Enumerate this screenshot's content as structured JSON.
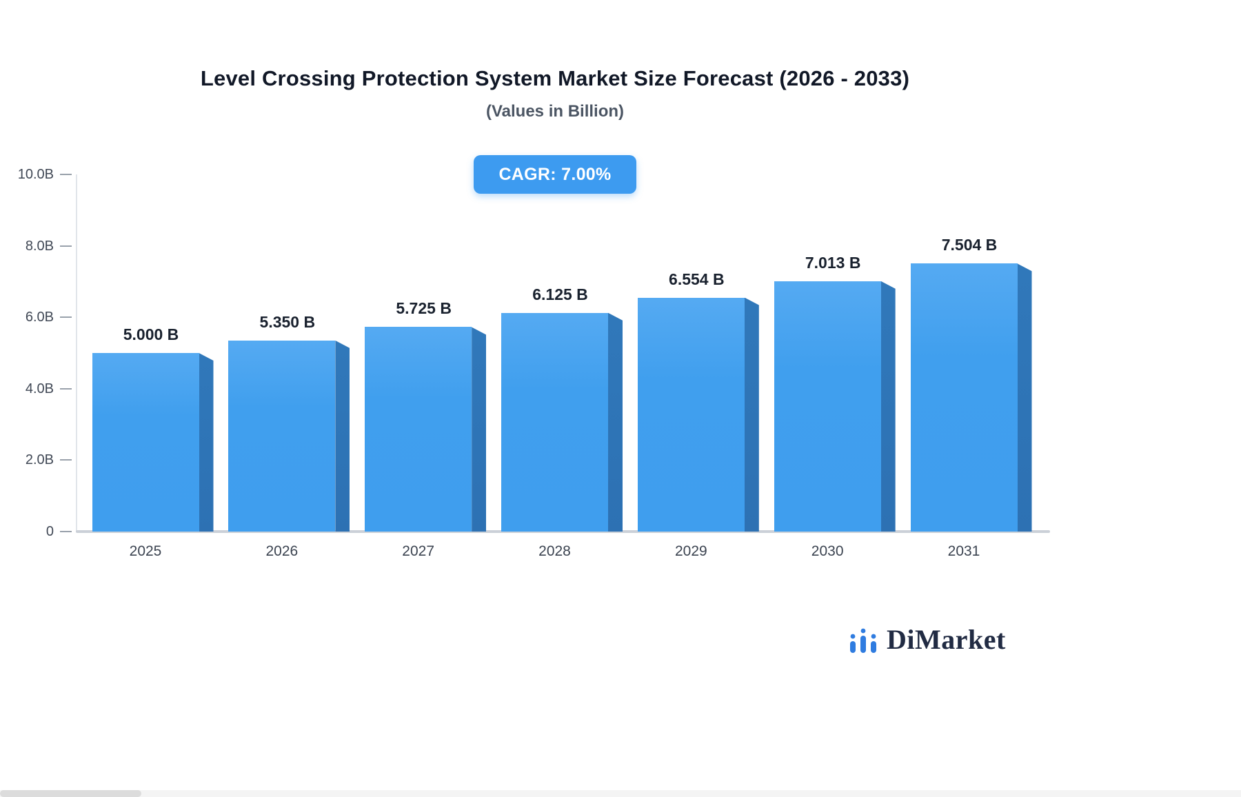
{
  "header": {
    "title": "Level Crossing Protection System Market Size Forecast (2026 - 2033)",
    "subtitle": "(Values in Billion)"
  },
  "badge": {
    "label": "CAGR: 7.00%",
    "bg_color": "#3d9bf0",
    "text_color": "#ffffff"
  },
  "logo": {
    "text": "DiMarket",
    "icon": "bar-chart-icon",
    "text_color": "#212b43",
    "icon_color": "#2f7ce0"
  },
  "chart_data": {
    "type": "bar",
    "categories": [
      "2025",
      "2026",
      "2027",
      "2028",
      "2029",
      "2030",
      "2031"
    ],
    "values": [
      5.0,
      5.35,
      5.725,
      6.125,
      6.554,
      7.013,
      7.504
    ],
    "value_labels": [
      "5.000 B",
      "5.350 B",
      "5.725 B",
      "6.125 B",
      "6.554 B",
      "7.013 B",
      "7.504 B"
    ],
    "title": "Level Crossing Protection System Market Size Forecast (2026 - 2033)",
    "subtitle": "(Values in Billion)",
    "xlabel": "",
    "ylabel": "",
    "ylim": [
      0,
      10
    ],
    "yticks": [
      0,
      2,
      4,
      6,
      8,
      10
    ],
    "ytick_labels": [
      "0",
      "2.0B",
      "4.0B",
      "6.0B",
      "8.0B",
      "10.0B"
    ],
    "grid": false,
    "legend": false,
    "bar_color": "#42a1ee",
    "bar_side_color": "#2e73b5",
    "annotation": "CAGR: 7.00%"
  }
}
